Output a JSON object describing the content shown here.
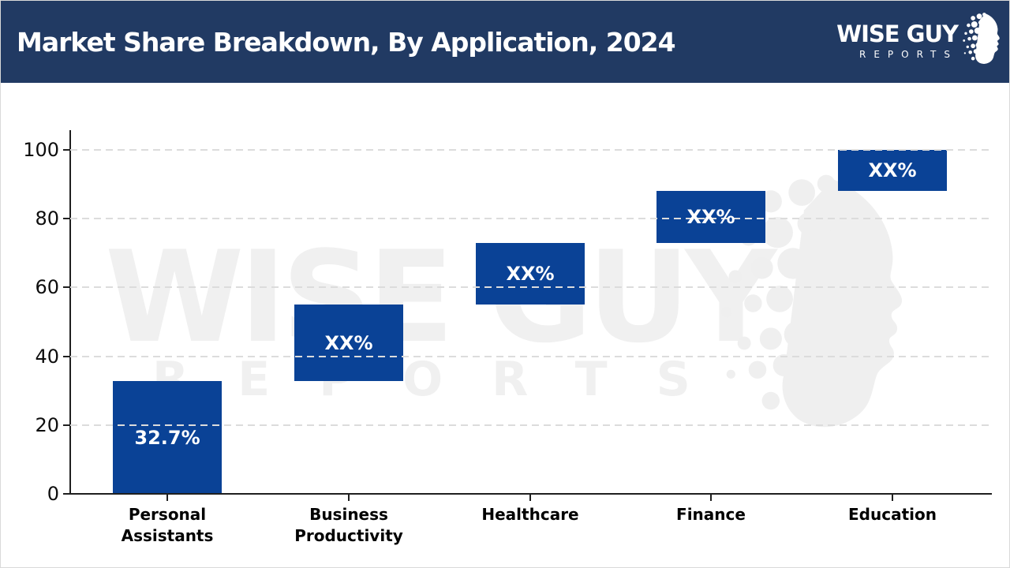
{
  "header": {
    "title": "Market Share Breakdown, By Application, 2024",
    "background": "#213a63",
    "logo_line1": "WISE GUY",
    "logo_line2": "REPORTS"
  },
  "watermark": {
    "line1": "WISE GUY",
    "line2": "REPORTS"
  },
  "chart_data": {
    "type": "bar",
    "subtype": "waterfall",
    "title": "Market Share Breakdown, By Application, 2024",
    "xlabel": "",
    "ylabel": "",
    "ylim": [
      0,
      100
    ],
    "yticks": [
      0,
      20,
      40,
      60,
      80,
      100
    ],
    "grid": "horizontal-dashed",
    "legend": "none",
    "bar_color": "#0a4296",
    "value_label_color": "#ffffff",
    "categories": [
      "Personal Assistants",
      "Business Productivity",
      "Healthcare",
      "Finance",
      "Education"
    ],
    "segments": [
      {
        "category": "Personal Assistants",
        "category_lines": [
          "Personal",
          "Assistants"
        ],
        "start": 0,
        "end": 32.7,
        "value": 32.7,
        "label": "32.7%"
      },
      {
        "category": "Business Productivity",
        "category_lines": [
          "Business",
          "Productivity"
        ],
        "start": 32.7,
        "end": 55,
        "value": 22.3,
        "label": "XX%"
      },
      {
        "category": "Healthcare",
        "category_lines": [
          "Healthcare"
        ],
        "start": 55,
        "end": 73,
        "value": 18,
        "label": "XX%"
      },
      {
        "category": "Finance",
        "category_lines": [
          "Finance"
        ],
        "start": 73,
        "end": 88,
        "value": 15,
        "label": "XX%"
      },
      {
        "category": "Education",
        "category_lines": [
          "Education"
        ],
        "start": 88,
        "end": 100,
        "value": 12,
        "label": "XX%"
      }
    ]
  }
}
